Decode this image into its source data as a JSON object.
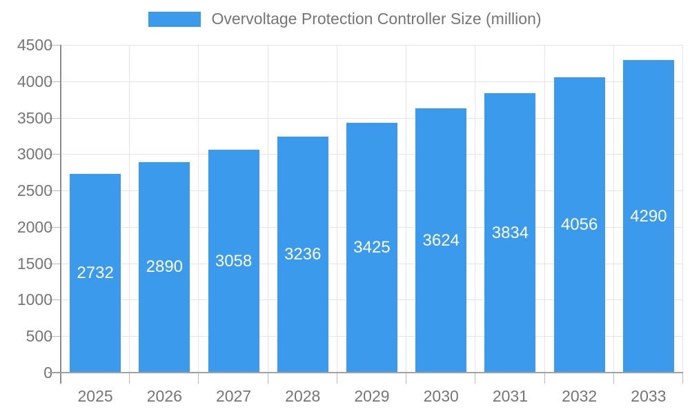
{
  "legend": {
    "items": [
      {
        "label": "Overvoltage Protection Controller Size (million)",
        "color": "#3B9AEC"
      }
    ]
  },
  "chart_data": {
    "type": "bar",
    "title": "Overvoltage Protection Controller Size (million)",
    "categories": [
      "2025",
      "2026",
      "2027",
      "2028",
      "2029",
      "2030",
      "2031",
      "2032",
      "2033"
    ],
    "series": [
      {
        "name": "Overvoltage Protection Controller Size (million)",
        "color": "#3B9AEC",
        "values": [
          2732,
          2890,
          3058,
          3236,
          3425,
          3624,
          3834,
          4056,
          4290
        ]
      }
    ],
    "xlabel": "",
    "ylabel": "",
    "ylim": [
      0,
      4500
    ],
    "yticks": [
      0,
      500,
      1000,
      1500,
      2000,
      2500,
      3000,
      3500,
      4000,
      4500
    ],
    "grid": true,
    "legend_position": "top",
    "value_labels": {
      "position": "inside-center",
      "color": "#ffffff"
    }
  },
  "style": {
    "axis_text_color": "#757575",
    "grid_color": "#e4e4e4",
    "y_axis_line_color": "#8c8c8c",
    "x_axis_line_color": "#a0a0a0",
    "tick_color": "#b8b8b8",
    "background": "#ffffff"
  }
}
